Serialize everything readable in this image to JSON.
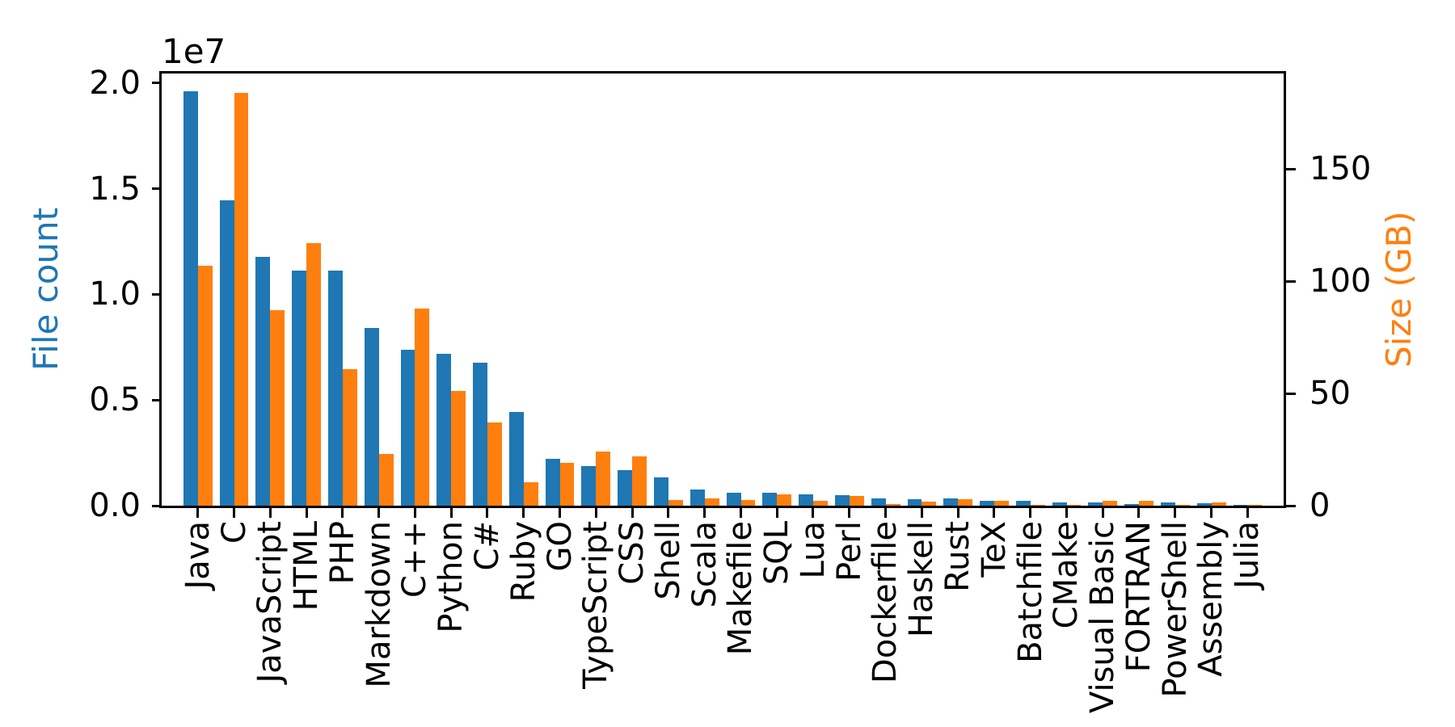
{
  "figure": {
    "title": "",
    "offset_text": "1e7",
    "left_axis": {
      "label": "File count",
      "color": "#1f77b4",
      "tick_labels": [
        "0.0",
        "0.5",
        "1.0",
        "1.5",
        "2.0"
      ],
      "tick_values": [
        0,
        5000000,
        10000000,
        15000000,
        20000000
      ]
    },
    "right_axis": {
      "label": "Size (GB)",
      "color": "#ff7f0e",
      "tick_labels": [
        "0",
        "50",
        "100",
        "150"
      ],
      "tick_values": [
        0,
        50,
        100,
        150
      ]
    }
  },
  "chart_data": {
    "type": "bar",
    "grid": false,
    "legend": false,
    "categories": [
      "Java",
      "C",
      "JavaScript",
      "HTML",
      "PHP",
      "Markdown",
      "C++",
      "Python",
      "C#",
      "Ruby",
      "GO",
      "TypeScript",
      "CSS",
      "Shell",
      "Scala",
      "Makefile",
      "SQL",
      "Lua",
      "Perl",
      "Dockerfile",
      "Haskell",
      "Rust",
      "TeX",
      "Batchfile",
      "CMake",
      "Visual Basic",
      "FORTRAN",
      "PowerShell",
      "Assembly",
      "Julia"
    ],
    "series": [
      {
        "name": "File count",
        "axis": "left",
        "color": "#1f77b4",
        "values": [
          19600000,
          14450000,
          11760000,
          11120000,
          11130000,
          8410000,
          7370000,
          7180000,
          6770000,
          4430000,
          2210000,
          1870000,
          1670000,
          1340000,
          780000,
          610000,
          620000,
          550000,
          490000,
          360000,
          320000,
          360000,
          220000,
          240000,
          160000,
          140000,
          90000,
          140000,
          100000,
          50000
        ]
      },
      {
        "name": "Size (GB)",
        "axis": "right",
        "color": "#ff7f0e",
        "values": [
          107,
          184,
          87,
          117,
          61,
          23,
          88,
          51,
          37,
          10.5,
          19,
          24,
          22,
          2.5,
          3.3,
          2.6,
          5.1,
          2.3,
          4.3,
          0.8,
          1.8,
          2.8,
          2.2,
          0.3,
          0.25,
          2.2,
          2.0,
          0.3,
          1.3,
          0.25
        ]
      }
    ],
    "xlabel": "",
    "ylabel_left": "File count",
    "ylabel_right": "Size (GB)",
    "ylim_left": [
      0,
      20446000
    ],
    "ylim_right": [
      0,
      192.6
    ]
  }
}
